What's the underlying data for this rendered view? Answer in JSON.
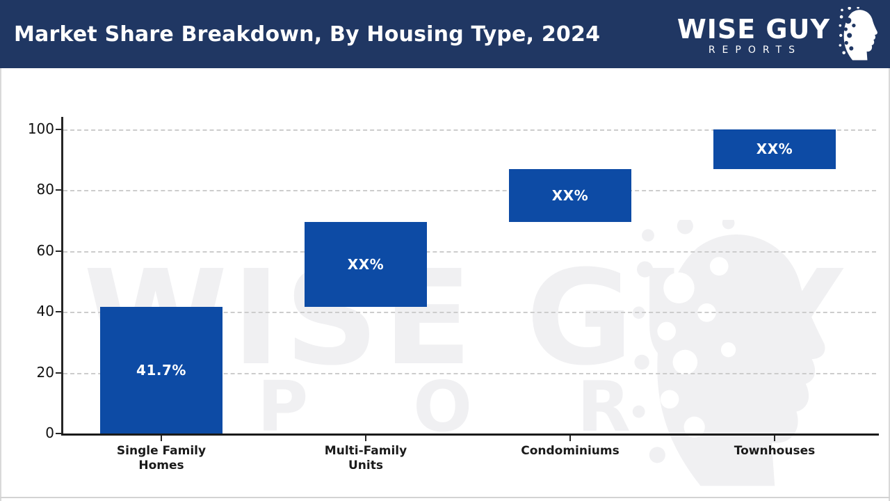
{
  "header": {
    "title": "Market Share Breakdown, By Housing Type, 2024",
    "bg_color": "#203763"
  },
  "logo": {
    "name_line": "WISE GUY",
    "reports_line": "REPORTS",
    "head_icon": "dotted-face-profile"
  },
  "watermark": {
    "line1": "WISE GUY",
    "line2": "P O R T S",
    "face_icon": "dotted-face-profile"
  },
  "chart_data": {
    "type": "bar",
    "variant": "waterfall",
    "title": "Market Share Breakdown, By Housing Type, 2024",
    "categories": [
      "Single Family Homes",
      "Multi-Family Units",
      "Condominiums",
      "Townhouses"
    ],
    "segments": [
      {
        "category": "Single Family Homes",
        "start": 0,
        "end": 41.7,
        "value": 41.7,
        "label": "41.7%"
      },
      {
        "category": "Multi-Family Units",
        "start": 41.7,
        "end": 69.5,
        "value": 27.8,
        "label": "XX%"
      },
      {
        "category": "Condominiums",
        "start": 69.5,
        "end": 86.9,
        "value": 17.4,
        "label": "XX%"
      },
      {
        "category": "Townhouses",
        "start": 86.9,
        "end": 100,
        "value": 13.1,
        "label": "XX%"
      }
    ],
    "xlabel": "",
    "ylabel": "",
    "ylim": [
      0,
      105
    ],
    "yticks": [
      0,
      20,
      40,
      60,
      80,
      100
    ],
    "grid": "horizontal-dashed",
    "legend": null,
    "bar_color": "#0d4ba5",
    "bar_label_color": "#ffffff",
    "axis_color": "#262626",
    "gridline_color": "#cccccc"
  }
}
